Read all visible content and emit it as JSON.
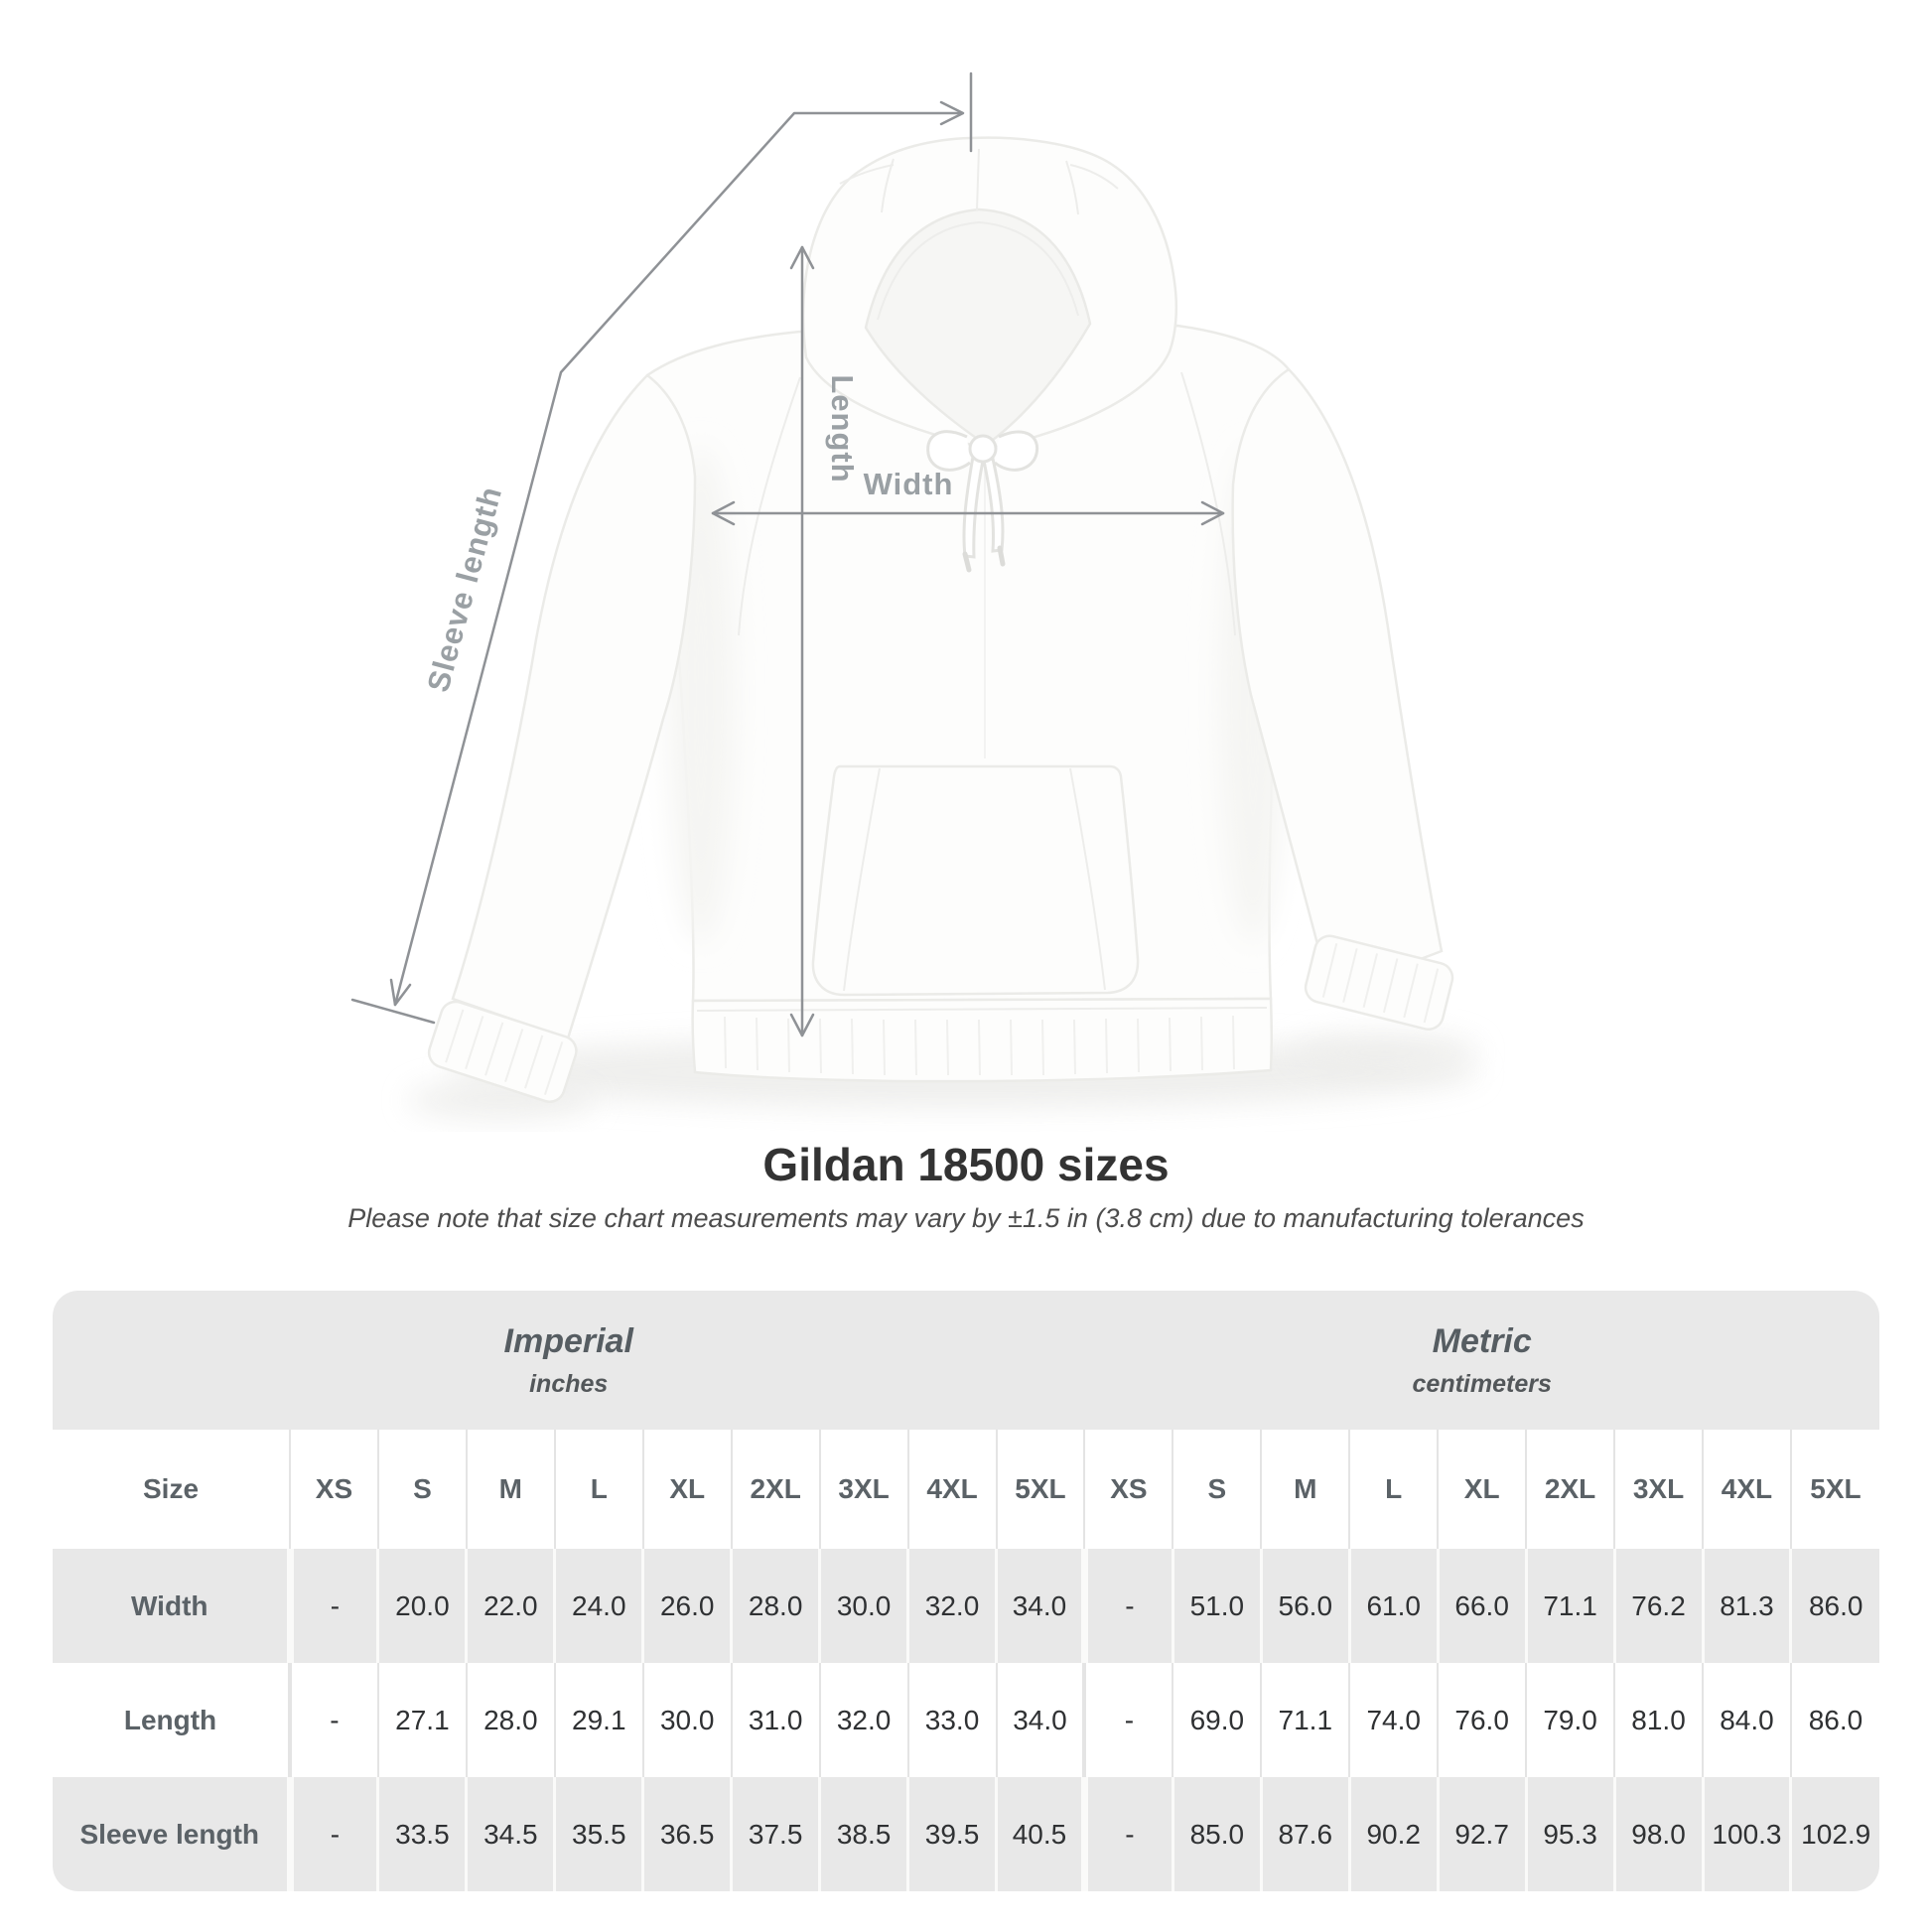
{
  "title": "Gildan 18500 sizes",
  "note": "Please note that size chart measurements may vary by ±1.5 in (3.8 cm) due to manufacturing tolerances",
  "figure": {
    "labels": {
      "length": "Length",
      "width": "Width",
      "sleeve": "Sleeve length"
    }
  },
  "table": {
    "size_col_label": "Size",
    "groups": [
      {
        "name": "Imperial",
        "unit": "inches"
      },
      {
        "name": "Metric",
        "unit": "centimeters"
      }
    ],
    "sizes": [
      "XS",
      "S",
      "M",
      "L",
      "XL",
      "2XL",
      "3XL",
      "4XL",
      "5XL"
    ],
    "rows": [
      {
        "label": "Width",
        "imperial": [
          "-",
          "20.0",
          "22.0",
          "24.0",
          "26.0",
          "28.0",
          "30.0",
          "32.0",
          "34.0"
        ],
        "metric": [
          "-",
          "51.0",
          "56.0",
          "61.0",
          "66.0",
          "71.1",
          "76.2",
          "81.3",
          "86.0"
        ]
      },
      {
        "label": "Length",
        "imperial": [
          "-",
          "27.1",
          "28.0",
          "29.1",
          "30.0",
          "31.0",
          "32.0",
          "33.0",
          "34.0"
        ],
        "metric": [
          "-",
          "69.0",
          "71.1",
          "74.0",
          "76.0",
          "79.0",
          "81.0",
          "84.0",
          "86.0"
        ]
      },
      {
        "label": "Sleeve length",
        "imperial": [
          "-",
          "33.5",
          "34.5",
          "35.5",
          "36.5",
          "37.5",
          "38.5",
          "39.5",
          "40.5"
        ],
        "metric": [
          "-",
          "85.0",
          "87.6",
          "90.2",
          "92.7",
          "95.3",
          "98.0",
          "100.3",
          "102.9"
        ]
      }
    ]
  },
  "colors": {
    "measure_line": "#8f9296",
    "measure_label": "#9aa0a4",
    "band_gray": "#e9e9e9",
    "row_gray": "#e8e8e8",
    "label_slate": "#5b6267",
    "value_dark": "#2f3133",
    "title_dark": "#333333"
  }
}
